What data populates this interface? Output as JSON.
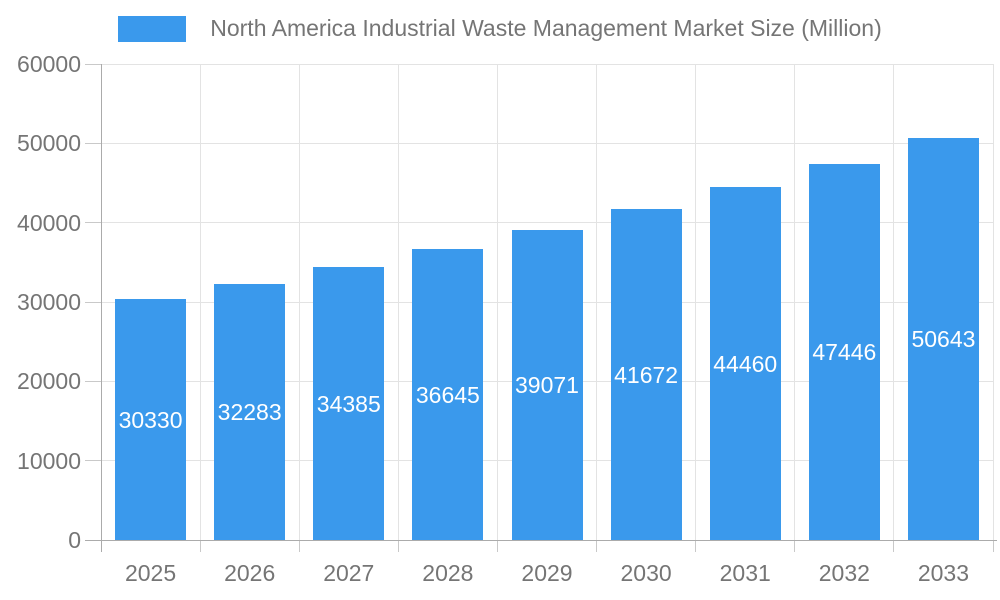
{
  "legend": {
    "label": "North America Industrial Waste Management Market Size (Million)"
  },
  "chart_data": {
    "type": "bar",
    "title": "North America Industrial Waste Management Market Size (Million)",
    "categories": [
      "2025",
      "2026",
      "2027",
      "2028",
      "2029",
      "2030",
      "2031",
      "2032",
      "2033"
    ],
    "values": [
      30330,
      32283,
      34385,
      36645,
      39071,
      41672,
      44460,
      47446,
      50643
    ],
    "xlabel": "",
    "ylabel": "",
    "ylim": [
      0,
      60000
    ],
    "yticks": [
      0,
      10000,
      20000,
      30000,
      40000,
      50000,
      60000
    ],
    "grid": true,
    "legend_position": "top",
    "value_labels_position": "inside-middle"
  },
  "colors": {
    "bar": "#3a99ec",
    "axis_text": "#757575",
    "grid_line": "#e3e3e3",
    "axis_line": "#ababab",
    "tick": "#c9c9c9",
    "value_label": "#ffffff",
    "background": "#ffffff"
  }
}
